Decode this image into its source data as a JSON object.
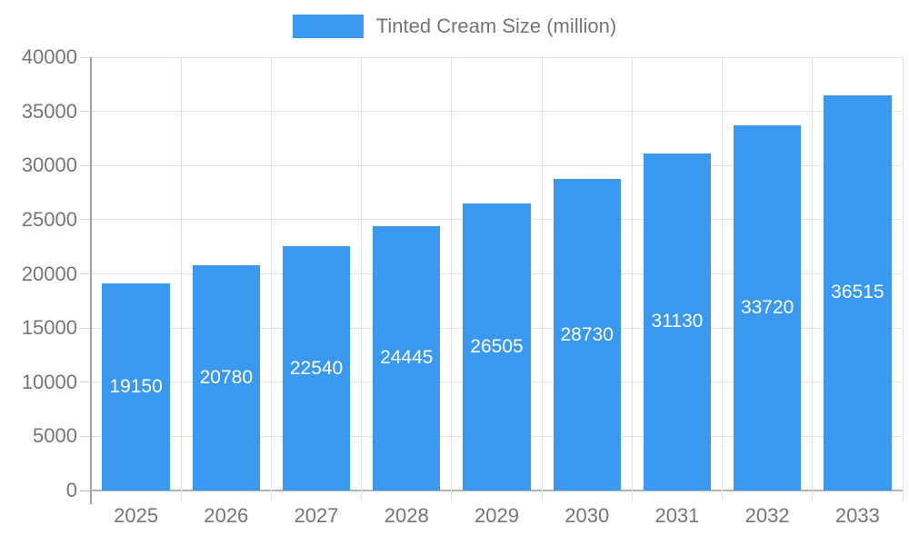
{
  "chart_data": {
    "type": "bar",
    "title": "",
    "legend": "Tinted Cream Size (million)",
    "legend_position": "top-center",
    "categories": [
      "2025",
      "2026",
      "2027",
      "2028",
      "2029",
      "2030",
      "2031",
      "2032",
      "2033"
    ],
    "values": [
      19150,
      20780,
      22540,
      24445,
      26505,
      28730,
      31130,
      33720,
      36515
    ],
    "xlabel": "",
    "ylabel": "",
    "ylim": [
      0,
      40000
    ],
    "yticks": [
      0,
      5000,
      10000,
      15000,
      20000,
      25000,
      30000,
      35000,
      40000
    ],
    "grid": true,
    "bar_label_position": "inside-center",
    "colors": {
      "bar": "#3a99ee",
      "bar_label": "#ffffff",
      "axis_text": "#757575",
      "grid_line": "#e2e2e2",
      "axis_line": "#a3a3a3",
      "zero_line": "#b2b2b2",
      "tick_line": "#d6d6d6",
      "background": "#ffffff"
    }
  }
}
